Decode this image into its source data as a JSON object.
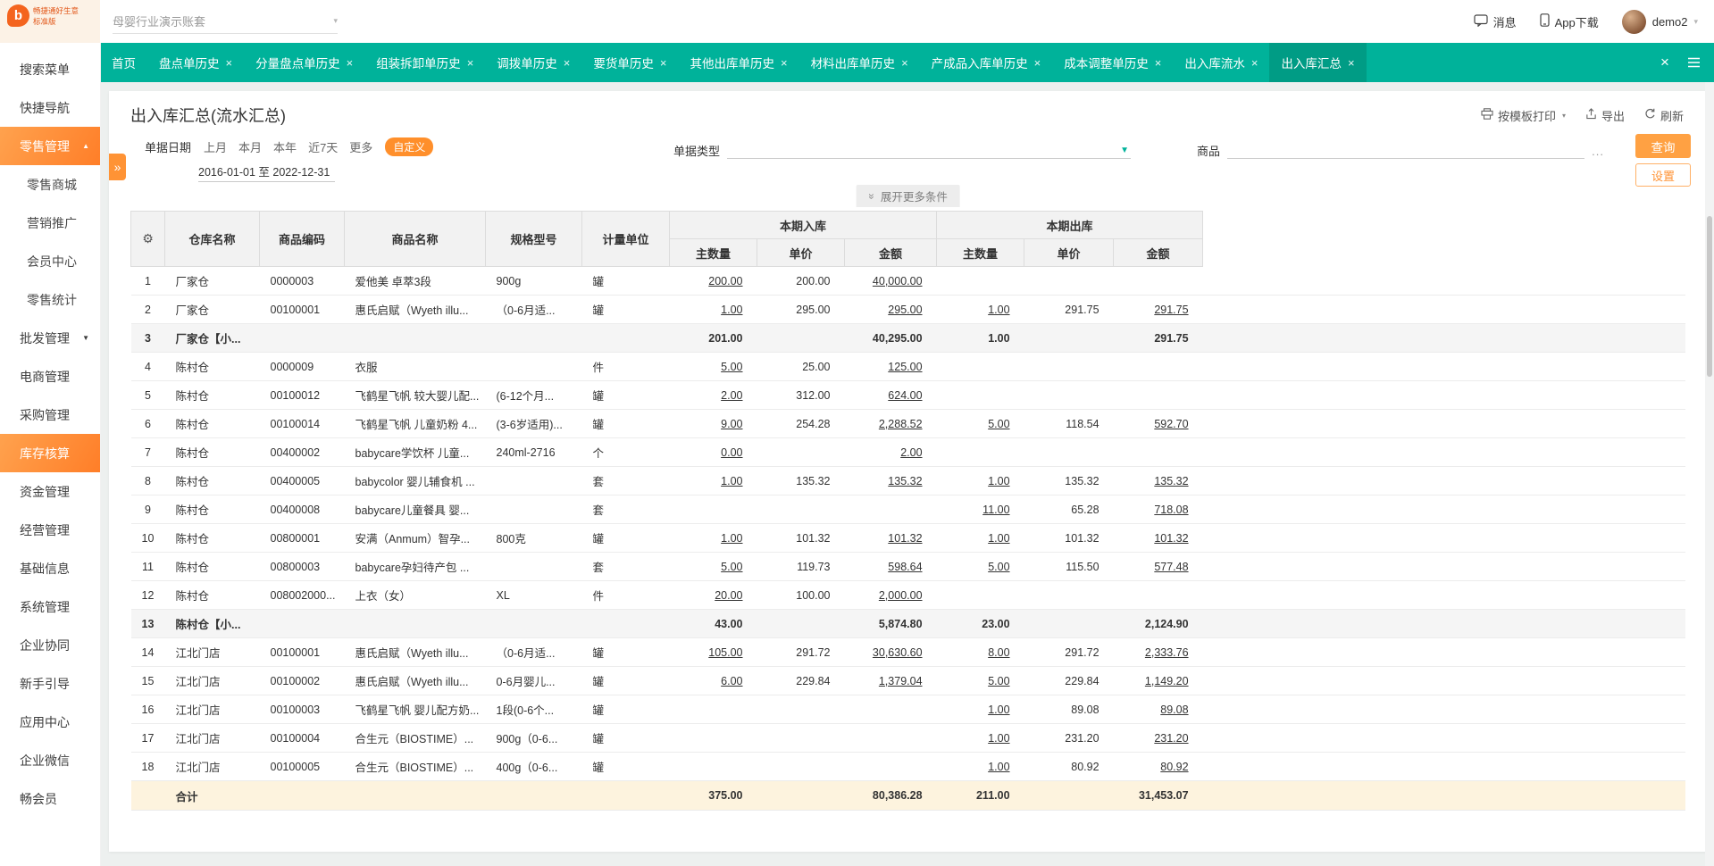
{
  "icons": {
    "close": "×",
    "caret_down": "▼",
    "caret_up": "▲",
    "small_caret": "▾",
    "collapse": "»",
    "gear": "⚙",
    "ellipsis": "..."
  },
  "topbar": {
    "logo_letter": "b",
    "logo_text": "畅捷通好生意",
    "logo_edition": "标准版",
    "account": "母婴行业演示账套",
    "messages": "消息",
    "app_download": "App下载",
    "username": "demo2"
  },
  "tab_bar": {
    "tabs": [
      {
        "label": "首页",
        "closable": false,
        "active": false
      },
      {
        "label": "盘点单历史",
        "closable": true,
        "active": false
      },
      {
        "label": "分量盘点单历史",
        "closable": true,
        "active": false
      },
      {
        "label": "组装拆卸单历史",
        "closable": true,
        "active": false
      },
      {
        "label": "调拨单历史",
        "closable": true,
        "active": false
      },
      {
        "label": "要货单历史",
        "closable": true,
        "active": false
      },
      {
        "label": "其他出库单历史",
        "closable": true,
        "active": false
      },
      {
        "label": "材料出库单历史",
        "closable": true,
        "active": false
      },
      {
        "label": "产成品入库单历史",
        "closable": true,
        "active": false
      },
      {
        "label": "成本调整单历史",
        "closable": true,
        "active": false
      },
      {
        "label": "出入库流水",
        "closable": true,
        "active": false
      },
      {
        "label": "出入库汇总",
        "closable": true,
        "active": true
      }
    ]
  },
  "sidebar": {
    "items": [
      {
        "label": "搜索菜单",
        "type": "plain"
      },
      {
        "label": "快捷导航",
        "type": "plain"
      },
      {
        "label": "零售管理",
        "type": "group-open"
      },
      {
        "label": "零售商城",
        "type": "sub"
      },
      {
        "label": "营销推广",
        "type": "sub"
      },
      {
        "label": "会员中心",
        "type": "sub"
      },
      {
        "label": "零售统计",
        "type": "sub"
      },
      {
        "label": "批发管理",
        "type": "group-closed"
      },
      {
        "label": "电商管理",
        "type": "plain"
      },
      {
        "label": "采购管理",
        "type": "plain"
      },
      {
        "label": "库存核算",
        "type": "active"
      },
      {
        "label": "资金管理",
        "type": "plain"
      },
      {
        "label": "经营管理",
        "type": "plain"
      },
      {
        "label": "基础信息",
        "type": "plain"
      },
      {
        "label": "系统管理",
        "type": "plain"
      },
      {
        "label": "企业协同",
        "type": "plain"
      },
      {
        "label": "新手引导",
        "type": "plain"
      },
      {
        "label": "应用中心",
        "type": "plain"
      },
      {
        "label": "企业微信",
        "type": "plain"
      },
      {
        "label": "畅会员",
        "type": "plain"
      }
    ]
  },
  "page": {
    "title": "出入库汇总(流水汇总)",
    "print_label": "按模板打印",
    "export_label": "导出",
    "refresh_label": "刷新"
  },
  "filters": {
    "date_label": "单据日期",
    "date_options": [
      "上月",
      "本月",
      "本年",
      "近7天",
      "更多"
    ],
    "custom_badge": "自定义",
    "date_range": "2016-01-01 至 2022-12-31",
    "doc_type_label": "单据类型",
    "product_label": "商品",
    "query_button": "查询",
    "settings_button": "设置",
    "expand_more": "展开更多条件"
  },
  "table": {
    "headers": {
      "warehouse": "仓库名称",
      "code": "商品编码",
      "name": "商品名称",
      "spec": "规格型号",
      "unit": "计量单位",
      "group_in": "本期入库",
      "group_out": "本期出库",
      "qty": "主数量",
      "price": "单价",
      "amount": "金额"
    },
    "rows": [
      {
        "n": "1",
        "type": "normal",
        "warehouse": "厂家仓",
        "code": "0000003",
        "name": "爱他美 卓萃3段",
        "spec": "900g",
        "unit": "罐",
        "in_qty": "200.00",
        "in_price": "200.00",
        "in_amount": "40,000.00",
        "out_qty": "",
        "out_price": "",
        "out_amount": ""
      },
      {
        "n": "2",
        "type": "normal",
        "warehouse": "厂家仓",
        "code": "00100001",
        "name": "惠氏启赋（Wyeth illu...",
        "spec": "（0-6月适...",
        "unit": "罐",
        "in_qty": "1.00",
        "in_price": "295.00",
        "in_amount": "295.00",
        "out_qty": "1.00",
        "out_price": "291.75",
        "out_amount": "291.75"
      },
      {
        "n": "3",
        "type": "subtotal",
        "warehouse": "厂家仓【小...",
        "code": "",
        "name": "",
        "spec": "",
        "unit": "",
        "in_qty": "201.00",
        "in_price": "",
        "in_amount": "40,295.00",
        "out_qty": "1.00",
        "out_price": "",
        "out_amount": "291.75"
      },
      {
        "n": "4",
        "type": "normal",
        "warehouse": "陈村仓",
        "code": "0000009",
        "name": "衣服",
        "spec": "",
        "unit": "件",
        "in_qty": "5.00",
        "in_price": "25.00",
        "in_amount": "125.00",
        "out_qty": "",
        "out_price": "",
        "out_amount": ""
      },
      {
        "n": "5",
        "type": "normal",
        "warehouse": "陈村仓",
        "code": "00100012",
        "name": "飞鹤星飞帆 较大婴儿配...",
        "spec": "(6-12个月...",
        "unit": "罐",
        "in_qty": "2.00",
        "in_price": "312.00",
        "in_amount": "624.00",
        "out_qty": "",
        "out_price": "",
        "out_amount": ""
      },
      {
        "n": "6",
        "type": "normal",
        "warehouse": "陈村仓",
        "code": "00100014",
        "name": "飞鹤星飞帆 儿童奶粉 4...",
        "spec": "(3-6岁适用)...",
        "unit": "罐",
        "in_qty": "9.00",
        "in_price": "254.28",
        "in_amount": "2,288.52",
        "out_qty": "5.00",
        "out_price": "118.54",
        "out_amount": "592.70"
      },
      {
        "n": "7",
        "type": "normal",
        "warehouse": "陈村仓",
        "code": "00400002",
        "name": "babycare学饮杯 儿童...",
        "spec": "240ml-2716",
        "unit": "个",
        "in_qty": "0.00",
        "in_price": "",
        "in_amount": "2.00",
        "out_qty": "",
        "out_price": "",
        "out_amount": ""
      },
      {
        "n": "8",
        "type": "normal",
        "warehouse": "陈村仓",
        "code": "00400005",
        "name": "babycolor 婴儿辅食机 ...",
        "spec": "",
        "unit": "套",
        "in_qty": "1.00",
        "in_price": "135.32",
        "in_amount": "135.32",
        "out_qty": "1.00",
        "out_price": "135.32",
        "out_amount": "135.32"
      },
      {
        "n": "9",
        "type": "normal",
        "warehouse": "陈村仓",
        "code": "00400008",
        "name": "babycare儿童餐具 婴...",
        "spec": "",
        "unit": "套",
        "in_qty": "",
        "in_price": "",
        "in_amount": "",
        "out_qty": "11.00",
        "out_price": "65.28",
        "out_amount": "718.08"
      },
      {
        "n": "10",
        "type": "normal",
        "warehouse": "陈村仓",
        "code": "00800001",
        "name": "安满（Anmum）智孕...",
        "spec": "800克",
        "unit": "罐",
        "in_qty": "1.00",
        "in_price": "101.32",
        "in_amount": "101.32",
        "out_qty": "1.00",
        "out_price": "101.32",
        "out_amount": "101.32"
      },
      {
        "n": "11",
        "type": "normal",
        "warehouse": "陈村仓",
        "code": "00800003",
        "name": "babycare孕妇待产包 ...",
        "spec": "",
        "unit": "套",
        "in_qty": "5.00",
        "in_price": "119.73",
        "in_amount": "598.64",
        "out_qty": "5.00",
        "out_price": "115.50",
        "out_amount": "577.48"
      },
      {
        "n": "12",
        "type": "normal",
        "warehouse": "陈村仓",
        "code": "008002000...",
        "name": "上衣（女）",
        "spec": "XL",
        "unit": "件",
        "in_qty": "20.00",
        "in_price": "100.00",
        "in_amount": "2,000.00",
        "out_qty": "",
        "out_price": "",
        "out_amount": ""
      },
      {
        "n": "13",
        "type": "subtotal",
        "warehouse": "陈村仓【小...",
        "code": "",
        "name": "",
        "spec": "",
        "unit": "",
        "in_qty": "43.00",
        "in_price": "",
        "in_amount": "5,874.80",
        "out_qty": "23.00",
        "out_price": "",
        "out_amount": "2,124.90"
      },
      {
        "n": "14",
        "type": "normal",
        "warehouse": "江北门店",
        "code": "00100001",
        "name": "惠氏启赋（Wyeth illu...",
        "spec": "（0-6月适...",
        "unit": "罐",
        "in_qty": "105.00",
        "in_price": "291.72",
        "in_amount": "30,630.60",
        "out_qty": "8.00",
        "out_price": "291.72",
        "out_amount": "2,333.76"
      },
      {
        "n": "15",
        "type": "normal",
        "warehouse": "江北门店",
        "code": "00100002",
        "name": "惠氏启赋（Wyeth illu...",
        "spec": "0-6月婴儿...",
        "unit": "罐",
        "in_qty": "6.00",
        "in_price": "229.84",
        "in_amount": "1,379.04",
        "out_qty": "5.00",
        "out_price": "229.84",
        "out_amount": "1,149.20"
      },
      {
        "n": "16",
        "type": "normal",
        "warehouse": "江北门店",
        "code": "00100003",
        "name": "飞鹤星飞帆 婴儿配方奶...",
        "spec": "1段(0-6个...",
        "unit": "罐",
        "in_qty": "",
        "in_price": "",
        "in_amount": "",
        "out_qty": "1.00",
        "out_price": "89.08",
        "out_amount": "89.08"
      },
      {
        "n": "17",
        "type": "normal",
        "warehouse": "江北门店",
        "code": "00100004",
        "name": "合生元（BIOSTIME）...",
        "spec": "900g（0-6...",
        "unit": "罐",
        "in_qty": "",
        "in_price": "",
        "in_amount": "",
        "out_qty": "1.00",
        "out_price": "231.20",
        "out_amount": "231.20"
      },
      {
        "n": "18",
        "type": "normal",
        "warehouse": "江北门店",
        "code": "00100005",
        "name": "合生元（BIOSTIME）...",
        "spec": "400g（0-6...",
        "unit": "罐",
        "in_qty": "",
        "in_price": "",
        "in_amount": "",
        "out_qty": "1.00",
        "out_price": "80.92",
        "out_amount": "80.92"
      }
    ],
    "total": {
      "label": "合计",
      "in_qty": "375.00",
      "in_amount": "80,386.28",
      "out_qty": "211.00",
      "out_amount": "31,453.07"
    }
  }
}
